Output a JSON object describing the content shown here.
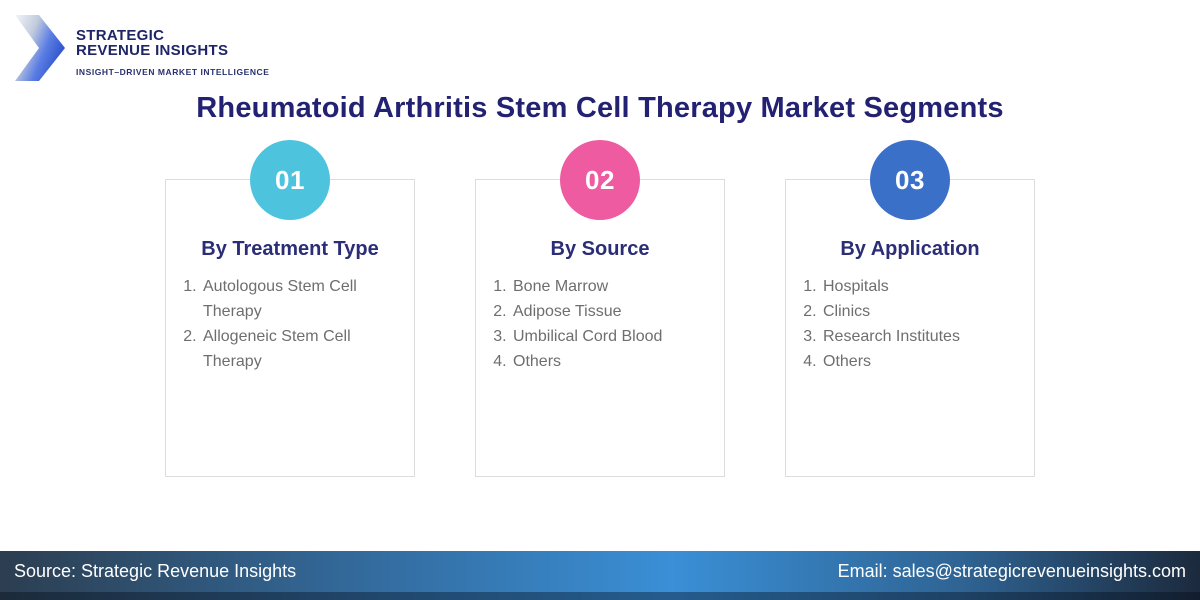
{
  "brand": {
    "name_line1": "STRATEGIC",
    "name_line2": "REVENUE INSIGHTS",
    "tagline": "INSIGHT–DRIVEN MARKET INTELLIGENCE",
    "logo_icon": "chevron-right-icon",
    "navy": "#1f2566"
  },
  "title": "Rheumatoid Arthritis Stem Cell Therapy Market Segments",
  "colors": {
    "title_navy": "#232272",
    "heading_navy": "#2b2d77",
    "list_gray": "#6e6e6e",
    "card_border": "#dcdcdc",
    "footer_gradient_left": "#2c3e50",
    "footer_gradient_mid": "#3a8fd6",
    "footer_gradient_right": "#1c2a3d"
  },
  "cards": [
    {
      "number": "01",
      "badge_color": "#4ec3de",
      "heading": "By Treatment Type",
      "items": [
        "Autologous Stem Cell Therapy",
        "Allogeneic Stem Cell Therapy"
      ]
    },
    {
      "number": "02",
      "badge_color": "#ee5ba1",
      "heading": "By Source",
      "items": [
        "Bone Marrow",
        "Adipose Tissue",
        "Umbilical Cord Blood",
        "Others"
      ]
    },
    {
      "number": "03",
      "badge_color": "#3a70c8",
      "heading": "By Application",
      "items": [
        "Hospitals",
        "Clinics",
        "Research Institutes",
        "Others"
      ]
    }
  ],
  "footer": {
    "source": "Source: Strategic Revenue Insights",
    "email": "Email: sales@strategicrevenueinsights.com"
  }
}
